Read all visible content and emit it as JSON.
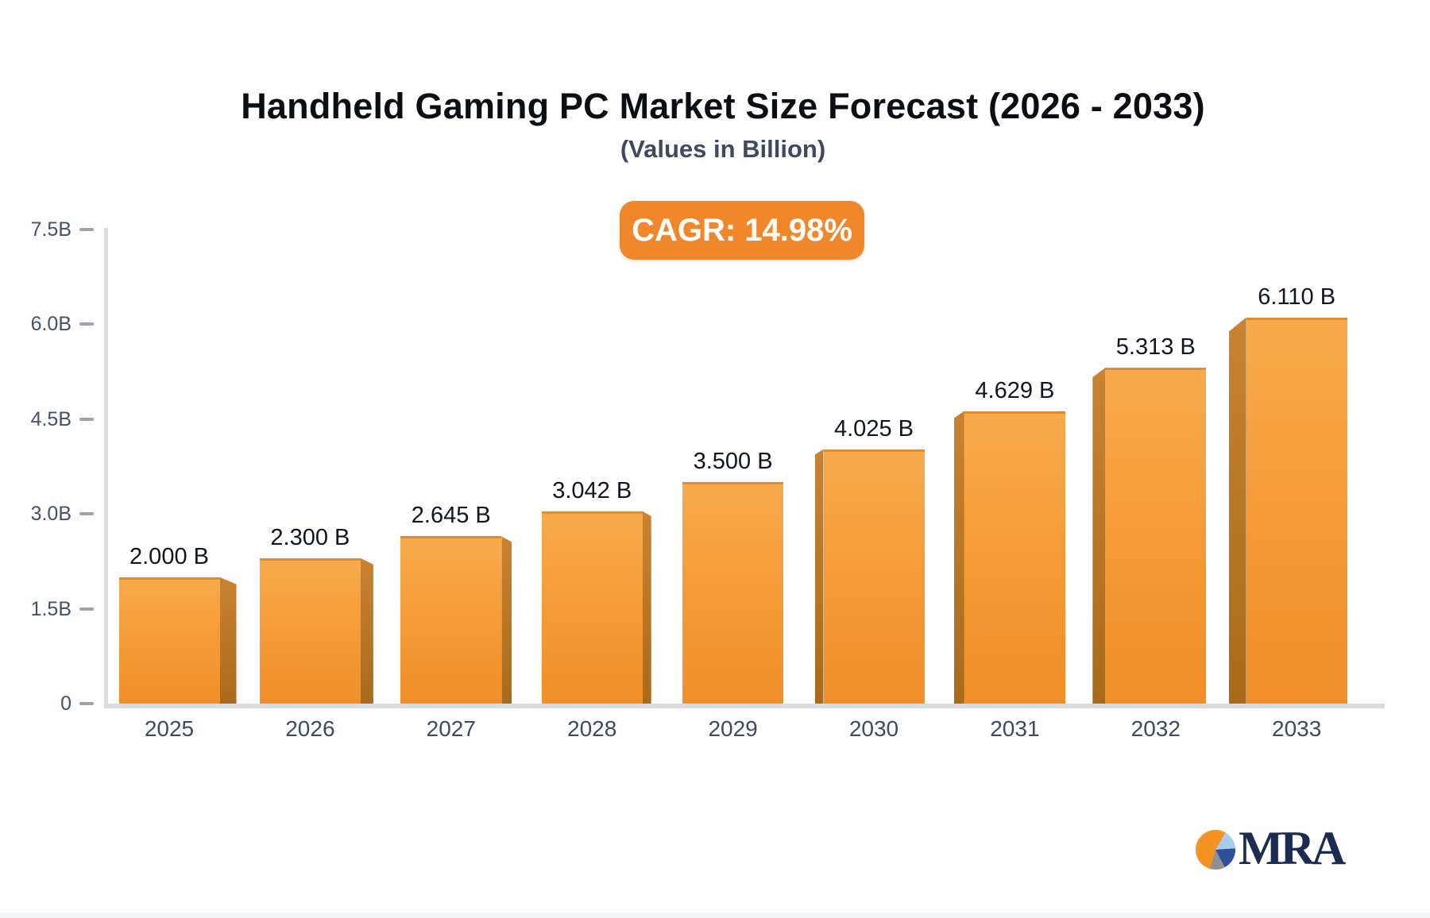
{
  "header": {
    "title": "Handheld Gaming PC Market Size Forecast (2026 - 2033)",
    "subtitle": "(Values in Billion)",
    "cagr_badge": "CAGR: 14.98%"
  },
  "chart_data": {
    "type": "bar",
    "title": "Handheld Gaming PC Market Size Forecast (2026 - 2033)",
    "subtitle": "(Values in Billion)",
    "annotation": "CAGR: 14.98%",
    "categories": [
      "2025",
      "2026",
      "2027",
      "2028",
      "2029",
      "2030",
      "2031",
      "2032",
      "2033"
    ],
    "values": [
      2.0,
      2.3,
      2.645,
      3.042,
      3.5,
      4.025,
      4.629,
      5.313,
      6.11
    ],
    "bar_labels": [
      "2.000 B",
      "2.300 B",
      "2.645 B",
      "3.042 B",
      "3.500 B",
      "4.025 B",
      "4.629 B",
      "5.313 B",
      "6.110 B"
    ],
    "unit_suffix": "B",
    "xlabel": "",
    "ylabel": "",
    "ylim": [
      0,
      7.5
    ],
    "y_ticks": [
      {
        "label": "7.5B",
        "value": 7.5
      },
      {
        "label": "6.0B",
        "value": 6.0
      },
      {
        "label": "4.5B",
        "value": 4.5
      },
      {
        "label": "3.0B",
        "value": 3.0
      },
      {
        "label": "1.5B",
        "value": 1.5
      },
      {
        "label": "0",
        "value": 0
      }
    ],
    "grid": false,
    "legend": "none",
    "style": "3d-perspective-bars",
    "colors": {
      "bar_face_top": "#f8ab4d",
      "bar_face_bottom": "#f28f28",
      "bar_side": "#b3721f",
      "bar_top_edge": "#de8e2e",
      "badge_background": "#f0872b",
      "badge_text": "#ffffff",
      "axis_line": "#dadbdf",
      "tick_text": "#44516a",
      "value_text": "#101520"
    }
  },
  "logo": {
    "text": "MRA",
    "icon": "pie-chart-icon",
    "text_color": "#1b2b52",
    "pie_colors": [
      "#f39322",
      "#a6ceec",
      "#2f4f9a",
      "#909197"
    ]
  }
}
